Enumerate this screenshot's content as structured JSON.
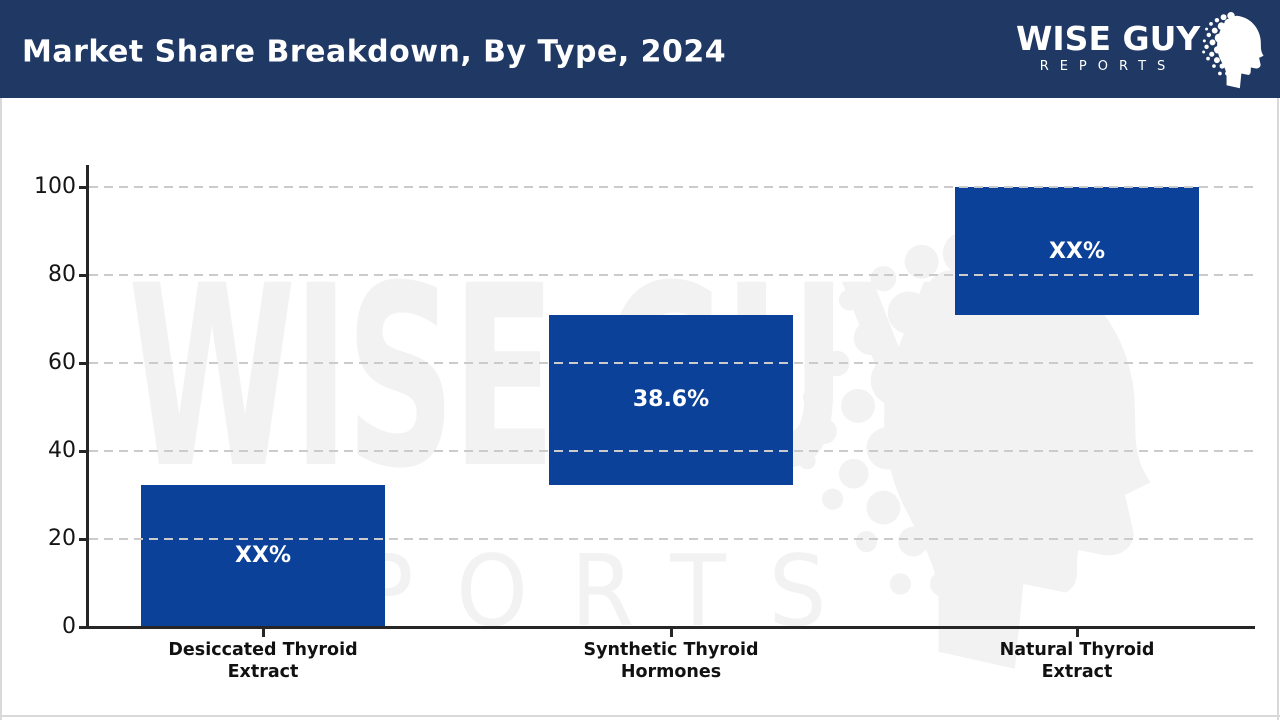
{
  "header": {
    "title": "Market Share Breakdown, By Type, 2024",
    "logo_name": "WISE GUY",
    "logo_sub": "REPORTS"
  },
  "watermark": {
    "name": "WISE GUY",
    "sub": "REPORTS"
  },
  "chart_data": {
    "type": "bar",
    "subtype": "waterfall-segments",
    "title": "Market Share Breakdown, By Type, 2024",
    "categories": [
      [
        "Desiccated Thyroid",
        "Extract"
      ],
      [
        "Synthetic Thyroid",
        "Hormones"
      ],
      [
        "Natural Thyroid",
        "Extract"
      ]
    ],
    "segments": [
      {
        "start": 0,
        "end": 32.3,
        "label": "XX%"
      },
      {
        "start": 32.3,
        "end": 70.9,
        "label": "38.6%"
      },
      {
        "start": 70.9,
        "end": 100,
        "label": "XX%"
      }
    ],
    "ylim": [
      0,
      105
    ],
    "yticks": [
      0,
      20,
      40,
      60,
      80,
      100
    ],
    "grid": "dashed horizontal, drawn above bars",
    "legend": "none",
    "bar_color": "#0b4199",
    "header_bg": "#1f3864",
    "axis_color": "#262626",
    "grid_color": "#cbcbcb",
    "bar_label_color": "#ffffff"
  }
}
